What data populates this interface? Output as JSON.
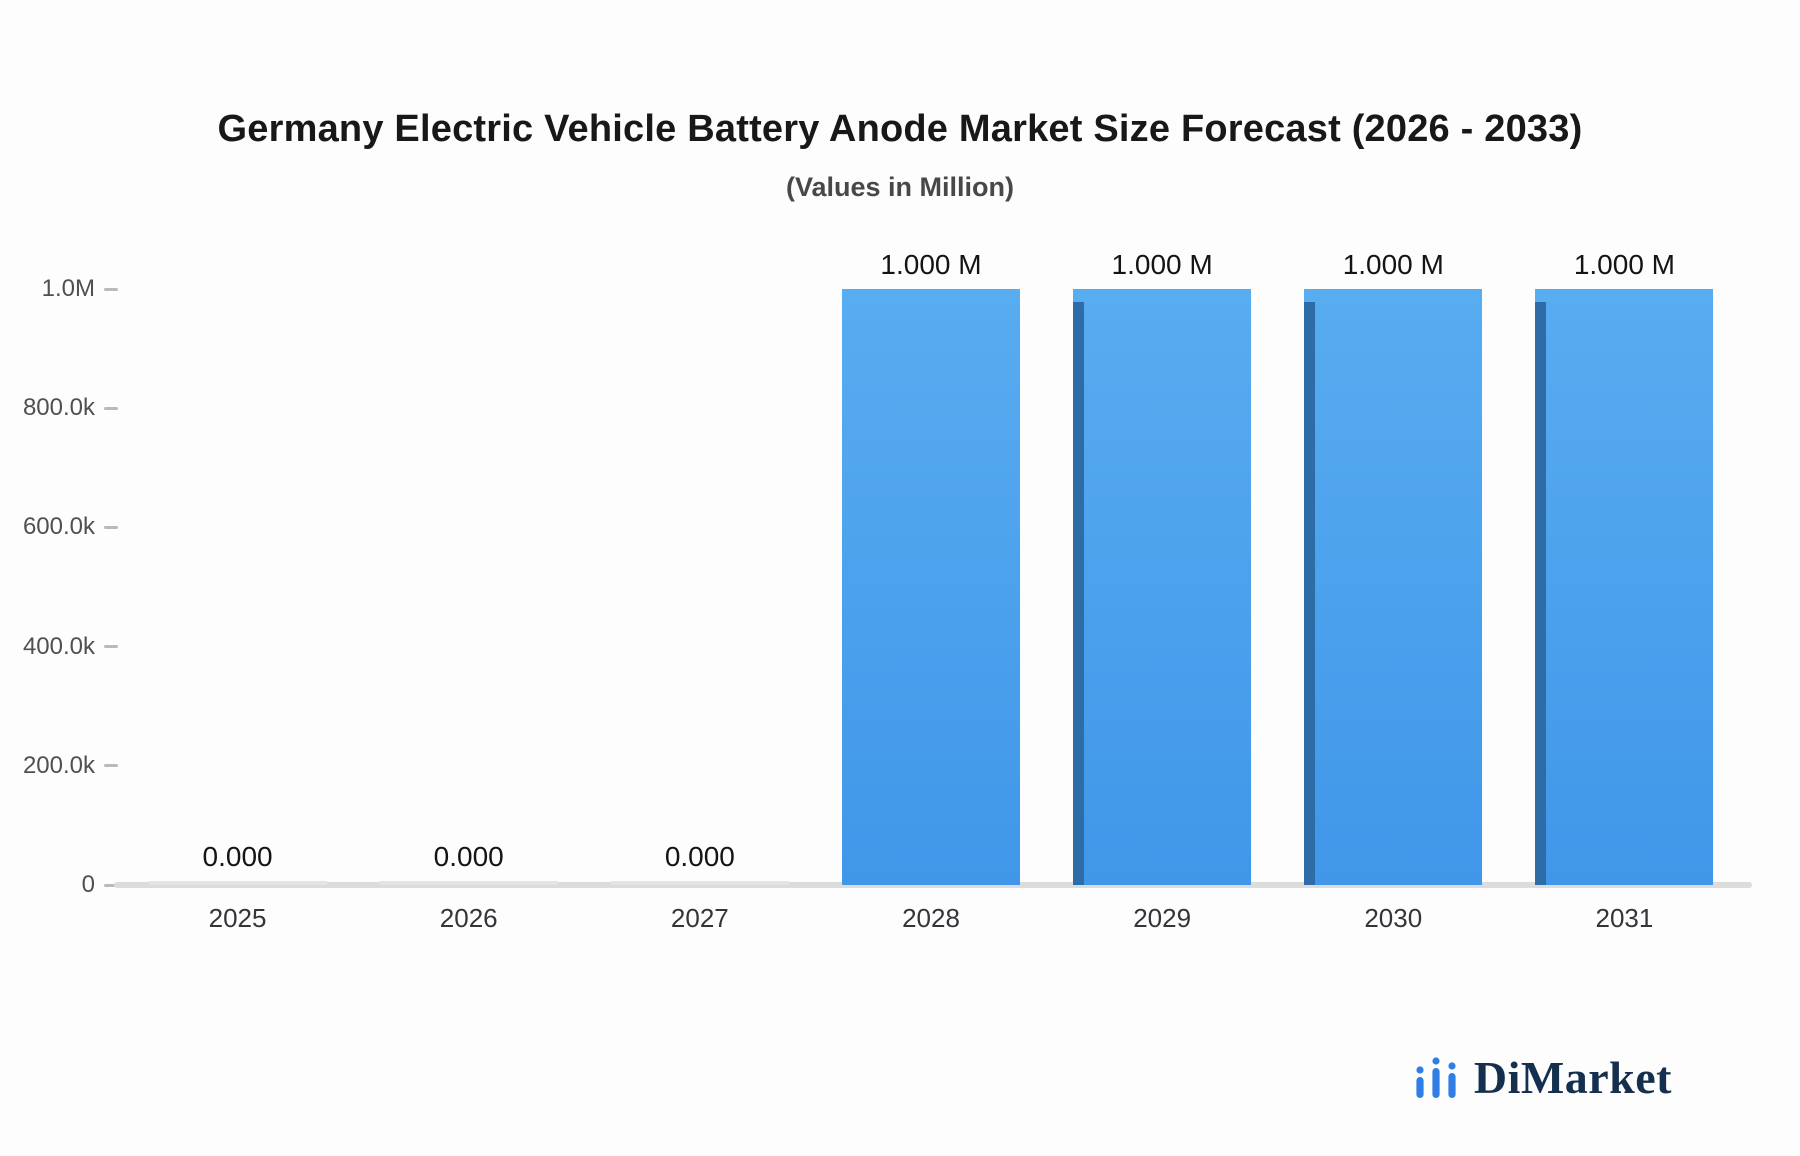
{
  "chart": {
    "title": "Germany Electric Vehicle Battery Anode Market Size Forecast (2026 - 2033)",
    "subtitle": "(Values in Million)"
  },
  "chart_data": {
    "type": "bar",
    "categories": [
      "2025",
      "2026",
      "2027",
      "2028",
      "2029",
      "2030",
      "2031"
    ],
    "values": [
      0,
      0,
      0,
      1000000,
      1000000,
      1000000,
      1000000
    ],
    "value_labels": [
      "0.000",
      "0.000",
      "0.000",
      "1.000 M",
      "1.000 M",
      "1.000 M",
      "1.000 M"
    ],
    "title": "Germany Electric Vehicle Battery Anode Market Size Forecast (2026 - 2033)",
    "subtitle": "(Values in Million)",
    "xlabel": "",
    "ylabel": "",
    "ylim": [
      0,
      1000000
    ],
    "y_ticks": [
      "0",
      "200.0k",
      "400.0k",
      "600.0k",
      "800.0k",
      "1.0M"
    ],
    "grid": false,
    "legend": false,
    "bar_color_top": "#58acf0",
    "bar_color_bottom": "#4097e9",
    "bar_edge_color": "#2d6ca6",
    "zero_bar_color": "#e4e4e4",
    "axis_line_color": "#dcdcdc"
  },
  "branding": {
    "logo_text": "DiMarket",
    "logo_icon": "bar-chart-icon",
    "logo_icon_color": "#2e7ee5",
    "logo_text_color": "#14304e"
  }
}
